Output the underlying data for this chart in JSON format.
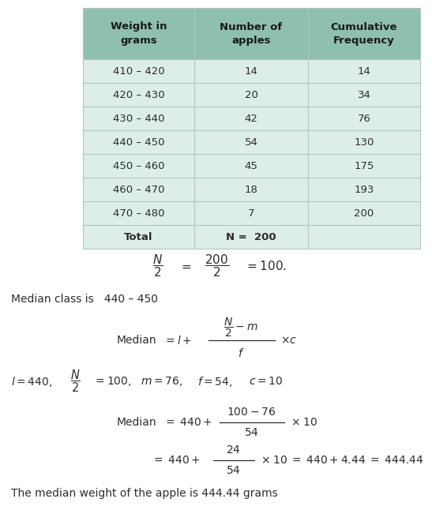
{
  "header_bg": "#8fbfb0",
  "row_bg": "#ddeee8",
  "header_text_color": "#1a1a1a",
  "text_color": "#2d2d2d",
  "headers": [
    "Weight in\ngrams",
    "Number of\napples",
    "Cumulative\nFrequency"
  ],
  "rows": [
    [
      "410 – 420",
      "14",
      "14"
    ],
    [
      "420 – 430",
      "20",
      "34"
    ],
    [
      "430 – 440",
      "42",
      "76"
    ],
    [
      "440 – 450",
      "54",
      "130"
    ],
    [
      "450 – 460",
      "45",
      "175"
    ],
    [
      "460 – 470",
      "18",
      "193"
    ],
    [
      "470 – 480",
      "7",
      "200"
    ]
  ],
  "total_row": [
    "Total",
    "N =  200",
    ""
  ],
  "figsize": [
    5.47,
    6.65
  ],
  "dpi": 100
}
